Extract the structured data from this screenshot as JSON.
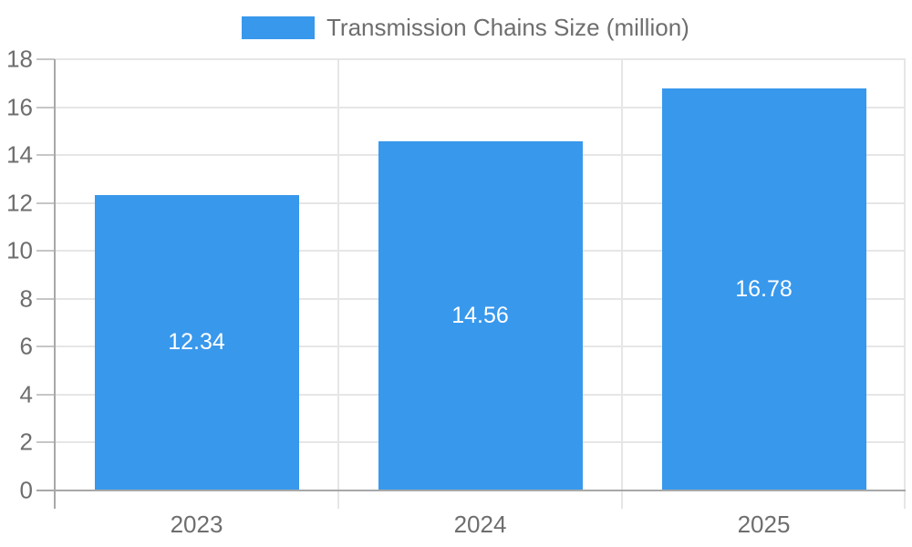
{
  "legend": {
    "label": "Transmission Chains Size (million)"
  },
  "colors": {
    "bar": "#3898ec",
    "grid": "#e6e6e6",
    "axis": "#a8a8a8",
    "tick": "#c6c6c6",
    "text": "#6e6e6e",
    "value_label": "#ffffff",
    "background": "#ffffff"
  },
  "chart_data": {
    "type": "bar",
    "title": "Transmission Chains Size (million)",
    "categories": [
      "2023",
      "2024",
      "2025"
    ],
    "values": [
      12.34,
      14.56,
      16.78
    ],
    "value_labels": [
      "12.34",
      "14.56",
      "16.78"
    ],
    "xlabel": "",
    "ylabel": "",
    "ylim": [
      0,
      18
    ],
    "ytick_step": 2,
    "ytick_labels": [
      "0",
      "2",
      "4",
      "6",
      "8",
      "10",
      "12",
      "14",
      "16",
      "18"
    ],
    "grid": true,
    "legend_position": "top",
    "bar_label_position": "center"
  }
}
